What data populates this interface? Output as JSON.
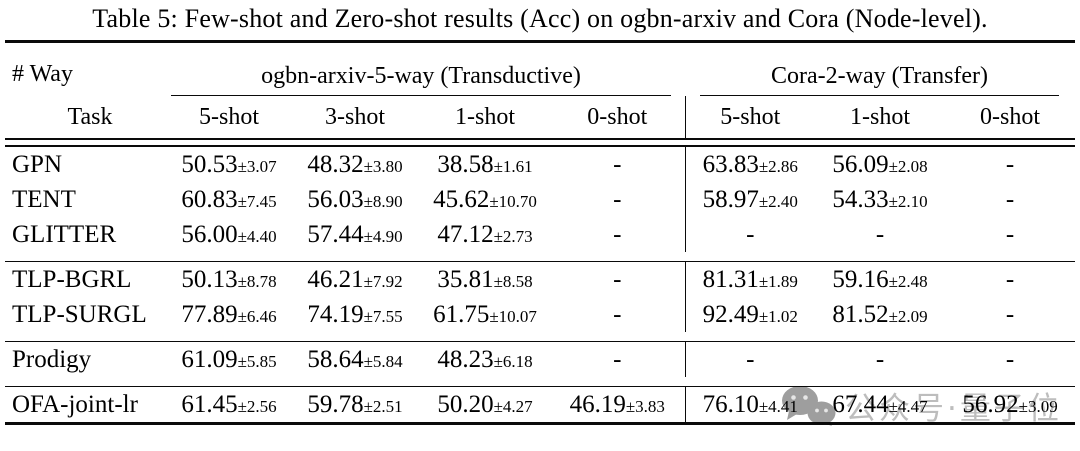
{
  "title": "Table 5: Few-shot and Zero-shot results (Acc) on ogbn-arxiv and Cora (Node-level).",
  "header": {
    "way_label": "# Way",
    "task_label": "Task",
    "groups": [
      {
        "label": "ogbn-arxiv-5-way (Transductive)",
        "cols": [
          "5-shot",
          "3-shot",
          "1-shot",
          "0-shot"
        ]
      },
      {
        "label": "Cora-2-way (Transfer)",
        "cols": [
          "5-shot",
          "1-shot",
          "0-shot"
        ]
      }
    ]
  },
  "dash": "-",
  "sections": [
    {
      "rows": [
        {
          "task": "GPN",
          "values": [
            {
              "acc": "50.53",
              "pm": "±3.07"
            },
            {
              "acc": "48.32",
              "pm": "±3.80"
            },
            {
              "acc": "38.58",
              "pm": "±1.61"
            },
            "-",
            {
              "acc": "63.83",
              "pm": "±2.86"
            },
            {
              "acc": "56.09",
              "pm": "±2.08"
            },
            "-"
          ]
        },
        {
          "task": "TENT",
          "values": [
            {
              "acc": "60.83",
              "pm": "±7.45"
            },
            {
              "acc": "56.03",
              "pm": "±8.90"
            },
            {
              "acc": "45.62",
              "pm": "±10.70"
            },
            "-",
            {
              "acc": "58.97",
              "pm": "±2.40"
            },
            {
              "acc": "54.33",
              "pm": "±2.10"
            },
            "-"
          ]
        },
        {
          "task": "GLITTER",
          "values": [
            {
              "acc": "56.00",
              "pm": "±4.40"
            },
            {
              "acc": "57.44",
              "pm": "±4.90"
            },
            {
              "acc": "47.12",
              "pm": "±2.73"
            },
            "-",
            "-",
            "-",
            "-"
          ]
        }
      ]
    },
    {
      "rows": [
        {
          "task": "TLP-BGRL",
          "values": [
            {
              "acc": "50.13",
              "pm": "±8.78"
            },
            {
              "acc": "46.21",
              "pm": "±7.92"
            },
            {
              "acc": "35.81",
              "pm": "±8.58"
            },
            "-",
            {
              "acc": "81.31",
              "pm": "±1.89"
            },
            {
              "acc": "59.16",
              "pm": "±2.48"
            },
            "-"
          ]
        },
        {
          "task": "TLP-SURGL",
          "values": [
            {
              "acc": "77.89",
              "pm": "±6.46"
            },
            {
              "acc": "74.19",
              "pm": "±7.55"
            },
            {
              "acc": "61.75",
              "pm": "±10.07"
            },
            "-",
            {
              "acc": "92.49",
              "pm": "±1.02"
            },
            {
              "acc": "81.52",
              "pm": "±2.09"
            },
            "-"
          ]
        }
      ]
    },
    {
      "rows": [
        {
          "task": "Prodigy",
          "values": [
            {
              "acc": "61.09",
              "pm": "±5.85"
            },
            {
              "acc": "58.64",
              "pm": "±5.84"
            },
            {
              "acc": "48.23",
              "pm": "±6.18"
            },
            "-",
            "-",
            "-",
            "-"
          ]
        }
      ]
    },
    {
      "rows": [
        {
          "task": "OFA-joint-lr",
          "values": [
            {
              "acc": "61.45",
              "pm": "±2.56"
            },
            {
              "acc": "59.78",
              "pm": "±2.51"
            },
            {
              "acc": "50.20",
              "pm": "±4.27"
            },
            {
              "acc": "46.19",
              "pm": "±3.83"
            },
            {
              "acc": "76.10",
              "pm": "±4.41"
            },
            {
              "acc": "67.44",
              "pm": "±4.47"
            },
            {
              "acc": "56.92",
              "pm": "±3.09"
            }
          ]
        }
      ]
    }
  ],
  "watermark": {
    "icon": "wechat-chat-bubbles-icon",
    "text": "公众号·量子位",
    "icon_color": "#9e9e9e",
    "text_color": "#bdbdbd"
  }
}
